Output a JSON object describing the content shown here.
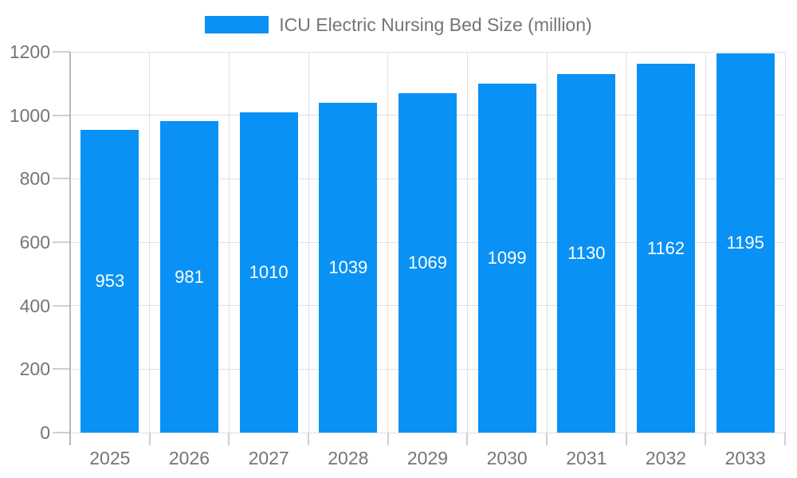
{
  "legend": {
    "label": "ICU Electric Nursing Bed Size (million)"
  },
  "chart_data": {
    "type": "bar",
    "title": "ICU Electric Nursing Bed Size (million)",
    "series_name": "ICU Electric Nursing Bed Size (million)",
    "categories": [
      "2025",
      "2026",
      "2027",
      "2028",
      "2029",
      "2030",
      "2031",
      "2032",
      "2033"
    ],
    "values": [
      953,
      981,
      1010,
      1039,
      1069,
      1099,
      1130,
      1162,
      1195
    ],
    "value_labels": [
      "953",
      "981",
      "1010",
      "1039",
      "1069",
      "1099",
      "1130",
      "1162",
      "1195"
    ],
    "xlabel": "",
    "ylabel": "",
    "ylim": [
      0,
      1200
    ],
    "yticks": [
      0,
      200,
      400,
      600,
      800,
      1000,
      1200
    ],
    "grid": true,
    "legend_position": "top-center",
    "value_label_position": "inside-middle",
    "colors": {
      "bar": "#0991f5",
      "bar_label": "#ffffff",
      "axis_text": "#757575",
      "gridline": "#e0e0e0",
      "axis_line": "#b8b8b8",
      "tick_mark": "#cfcfcf",
      "background": "#ffffff"
    }
  }
}
